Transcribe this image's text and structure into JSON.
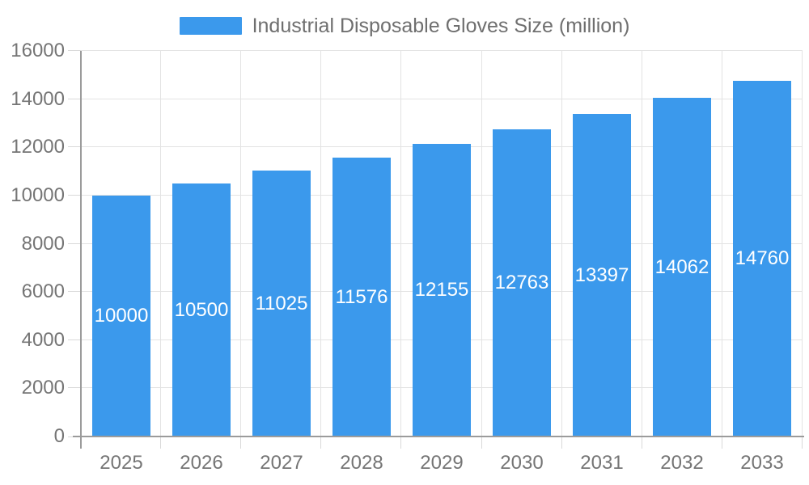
{
  "legend": {
    "label": "Industrial Disposable Gloves Size (million)"
  },
  "chart_data": {
    "type": "bar",
    "title": "Industrial Disposable Gloves Size (million)",
    "series_name": "Industrial Disposable Gloves Size (million)",
    "categories": [
      "2025",
      "2026",
      "2027",
      "2028",
      "2029",
      "2030",
      "2031",
      "2032",
      "2033"
    ],
    "values": [
      10000,
      10500,
      11025,
      11576,
      12155,
      12763,
      13397,
      14062,
      14760
    ],
    "value_labels": [
      "10000",
      "10500",
      "11025",
      "11576",
      "12155",
      "12763",
      "13397",
      "14062",
      "14760"
    ],
    "yticks": [
      "0",
      "2000",
      "4000",
      "6000",
      "8000",
      "10000",
      "12000",
      "14000",
      "16000"
    ],
    "ytick_values": [
      0,
      2000,
      4000,
      6000,
      8000,
      10000,
      12000,
      14000,
      16000
    ],
    "xlabel": "",
    "ylabel": "",
    "ylim": [
      0,
      16000
    ],
    "grid": true,
    "legend_position": "top-center",
    "colors": {
      "bar": "#3B99EC",
      "value_label": "#FFFFFF",
      "axis_text": "#757575",
      "legend_text": "#6F6F6F",
      "gridline": "#E3E3E3",
      "tick": "#D9D9D9",
      "axis_line": "#9B9B9B",
      "background": "#FFFFFF"
    }
  }
}
